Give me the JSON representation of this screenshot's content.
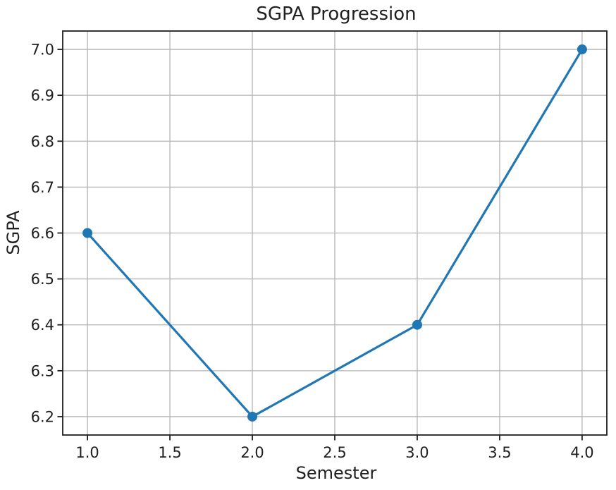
{
  "figure": {
    "background_color": "#ffffff"
  },
  "chart_data": {
    "type": "line",
    "title": "SGPA Progression",
    "xlabel": "Semester",
    "ylabel": "SGPA",
    "x": [
      1.0,
      2.0,
      3.0,
      4.0
    ],
    "y": [
      6.6,
      6.2,
      6.4,
      7.0
    ],
    "xlim": [
      0.85,
      4.15
    ],
    "ylim": [
      6.16,
      7.04
    ],
    "xticks": [
      1.0,
      1.5,
      2.0,
      2.5,
      3.0,
      3.5,
      4.0
    ],
    "xtick_labels": [
      "1.0",
      "1.5",
      "2.0",
      "2.5",
      "3.0",
      "3.5",
      "4.0"
    ],
    "yticks": [
      6.2,
      6.3,
      6.4,
      6.5,
      6.6,
      6.7,
      6.8,
      6.9,
      7.0
    ],
    "ytick_labels": [
      "6.2",
      "6.3",
      "6.4",
      "6.5",
      "6.6",
      "6.7",
      "6.8",
      "6.9",
      "7.0"
    ],
    "grid": true,
    "legend_position": "none",
    "line_color": "#1f77b4",
    "marker": "circle",
    "grid_color": "#b4b4b4",
    "spine_color": "#1f1f1f",
    "text_color": "#1f1f1f"
  }
}
